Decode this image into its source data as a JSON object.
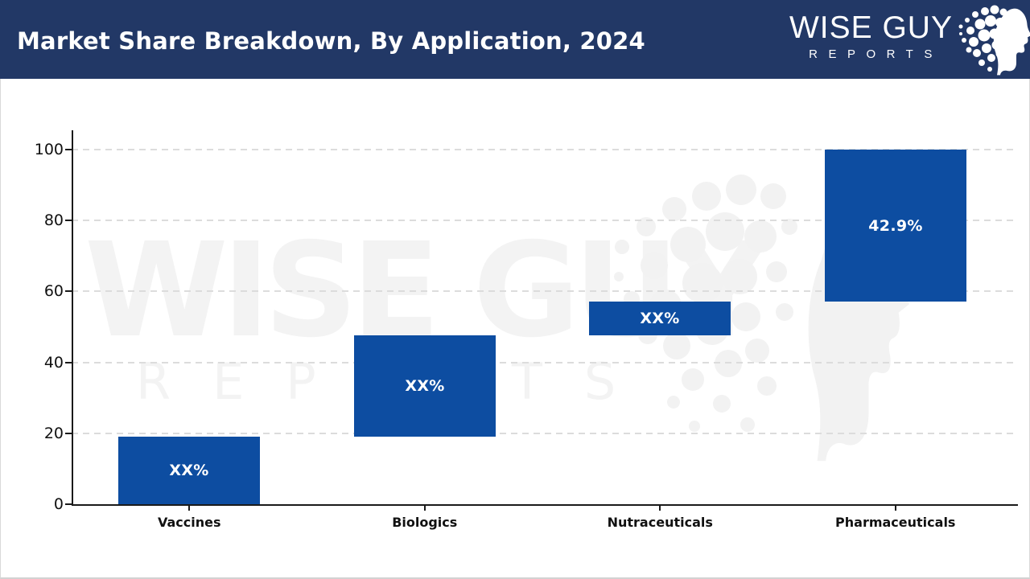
{
  "header": {
    "title": "Market Share Breakdown, By Application, 2024",
    "logo": {
      "line1": "WISE GUY",
      "line2": "REPORTS"
    }
  },
  "watermark": {
    "line1": "WISE GUY",
    "line2": "REPORTS"
  },
  "chart_data": {
    "type": "bar",
    "subtype": "waterfall",
    "title": "Market Share Breakdown, By Application, 2024",
    "categories": [
      "Vaccines",
      "Biologics",
      "Nutraceuticals",
      "Pharmaceuticals"
    ],
    "segments": [
      {
        "category": "Vaccines",
        "start": 0,
        "end": 19.0,
        "value": 19.0,
        "label": "XX%"
      },
      {
        "category": "Biologics",
        "start": 19.0,
        "end": 47.6,
        "value": 28.6,
        "label": "XX%"
      },
      {
        "category": "Nutraceuticals",
        "start": 47.6,
        "end": 57.1,
        "value": 9.5,
        "label": "XX%"
      },
      {
        "category": "Pharmaceuticals",
        "start": 57.1,
        "end": 100.0,
        "value": 42.9,
        "label": "42.9%"
      }
    ],
    "yticks": [
      0,
      20,
      40,
      60,
      80,
      100
    ],
    "ylim": [
      0,
      100
    ],
    "xlabel": "",
    "ylabel": "",
    "grid": "dashed-horizontal",
    "legend": "none",
    "bar_color": "#0d4da1",
    "bar_label_color": "#ffffff"
  },
  "colors": {
    "header_bg": "#223866",
    "bar": "#0d4da1",
    "grid": "#dcdcdc",
    "axis": "#1a1a1a",
    "watermark": "#f3f3f3"
  }
}
